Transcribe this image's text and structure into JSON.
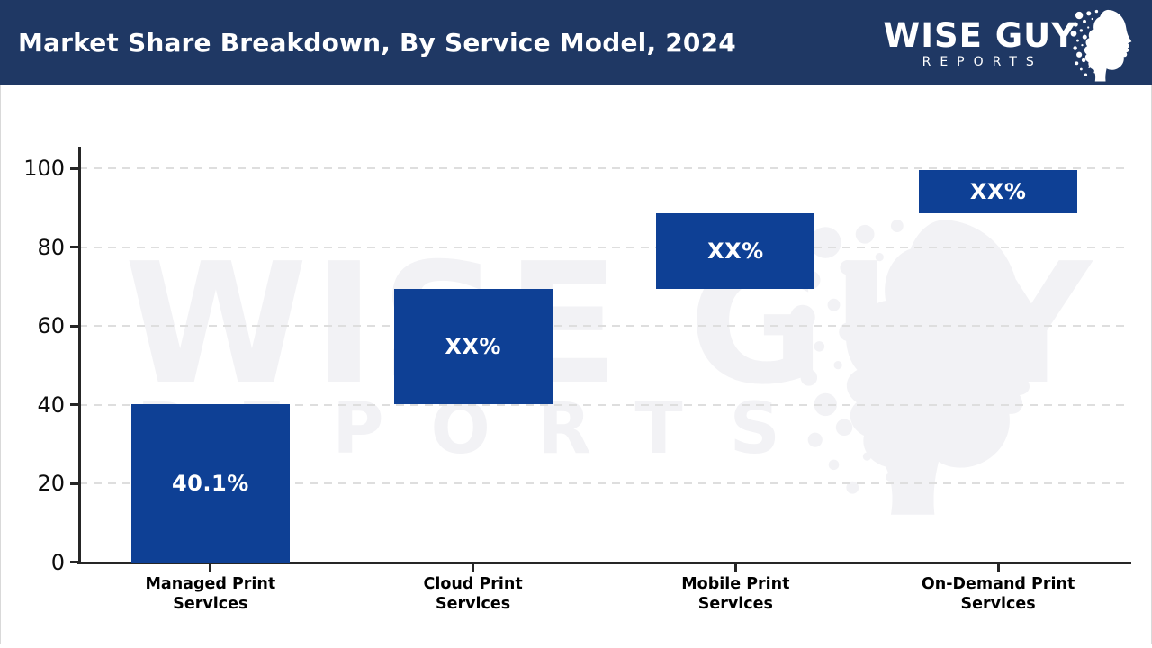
{
  "header": {
    "bg_color": "#1F3864",
    "title": "Market Share Breakdown, By Service Model, 2024",
    "logo": {
      "line1": "WISE GUY",
      "line2": "REPORTS"
    }
  },
  "watermark": {
    "line1": "WISE GUY",
    "line2": "REPORTS"
  },
  "chart_data": {
    "type": "bar",
    "subtype": "waterfall-stacked-breakdown",
    "title": "Market Share Breakdown, By Service Model, 2024",
    "categories": [
      "Managed Print Services",
      "Cloud Print Services",
      "Mobile Print Services",
      "On-Demand Print Services"
    ],
    "category_lines": [
      [
        "Managed Print",
        "Services"
      ],
      [
        "Cloud Print",
        "Services"
      ],
      [
        "Mobile Print",
        "Services"
      ],
      [
        "On-Demand Print",
        "Services"
      ]
    ],
    "segments": [
      {
        "category": "Managed Print Services",
        "start": 0,
        "end": 40.1,
        "value": 40.1,
        "label": "40.1%"
      },
      {
        "category": "Cloud Print Services",
        "start": 40.1,
        "end": 69.3,
        "value": 29.2,
        "label": "XX%"
      },
      {
        "category": "Mobile Print Services",
        "start": 69.3,
        "end": 88.5,
        "value": 19.2,
        "label": "XX%"
      },
      {
        "category": "On-Demand Print Services",
        "start": 88.5,
        "end": 99.6,
        "value": 11.1,
        "label": "XX%"
      }
    ],
    "y_ticks": [
      0,
      20,
      40,
      60,
      80,
      100
    ],
    "ylim": [
      0,
      105
    ],
    "xlabel": "",
    "ylabel": "",
    "grid": "horizontal-dashed",
    "legend": "none",
    "bar_color": "#0E4095",
    "label_color": "#ffffff"
  },
  "colors": {
    "header_bg": "#1F3864",
    "bar": "#0E4095",
    "axis": "#262626",
    "grid": "#DEDEDE",
    "tick_text": "#0D0D0D",
    "watermark": "#F2F2F5",
    "border": "#D9D9D9"
  }
}
